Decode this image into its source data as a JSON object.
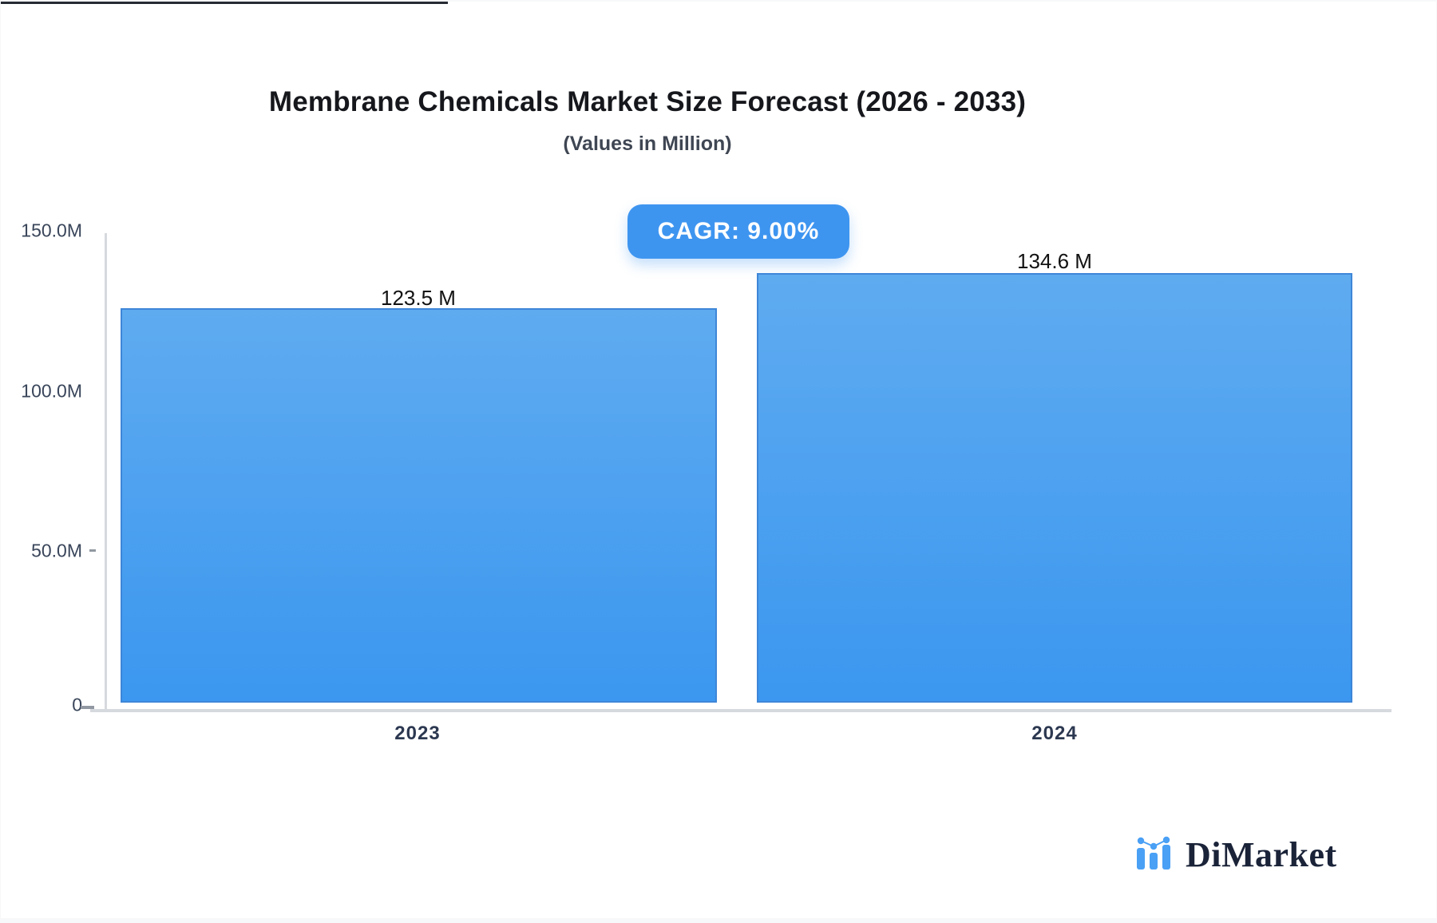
{
  "page": {
    "background": "#f7f8f9",
    "card_background": "#ffffff"
  },
  "chart_data": {
    "type": "bar",
    "title": "Membrane Chemicals Market Size Forecast (2026 - 2033)",
    "subtitle": "(Values in Million)",
    "cagr_label": "CAGR: 9.00%",
    "categories": [
      "2023",
      "2024"
    ],
    "values": [
      123.5,
      134.6
    ],
    "value_labels": [
      "123.5 M",
      "134.6 M"
    ],
    "unit": "Million",
    "ylim": [
      0,
      150
    ],
    "ytick_labels": [
      "150.0M",
      "100.0M",
      "50.0M",
      "0"
    ],
    "grid": false,
    "legend": false,
    "colors": {
      "bar_fill_top": "#5fabf0",
      "bar_fill_bottom": "#3b97ef",
      "bar_border": "#3e86d8",
      "badge": "#3e95f0",
      "axis": "#d6d9de",
      "title_text": "#15171c",
      "axis_text": "#39455a"
    }
  },
  "branding": {
    "logo_text": "DiMarket",
    "logo_icon": "bar-chart-icon",
    "logo_text_color": "#1a2338",
    "logo_icon_color": "#4aa0f5"
  }
}
